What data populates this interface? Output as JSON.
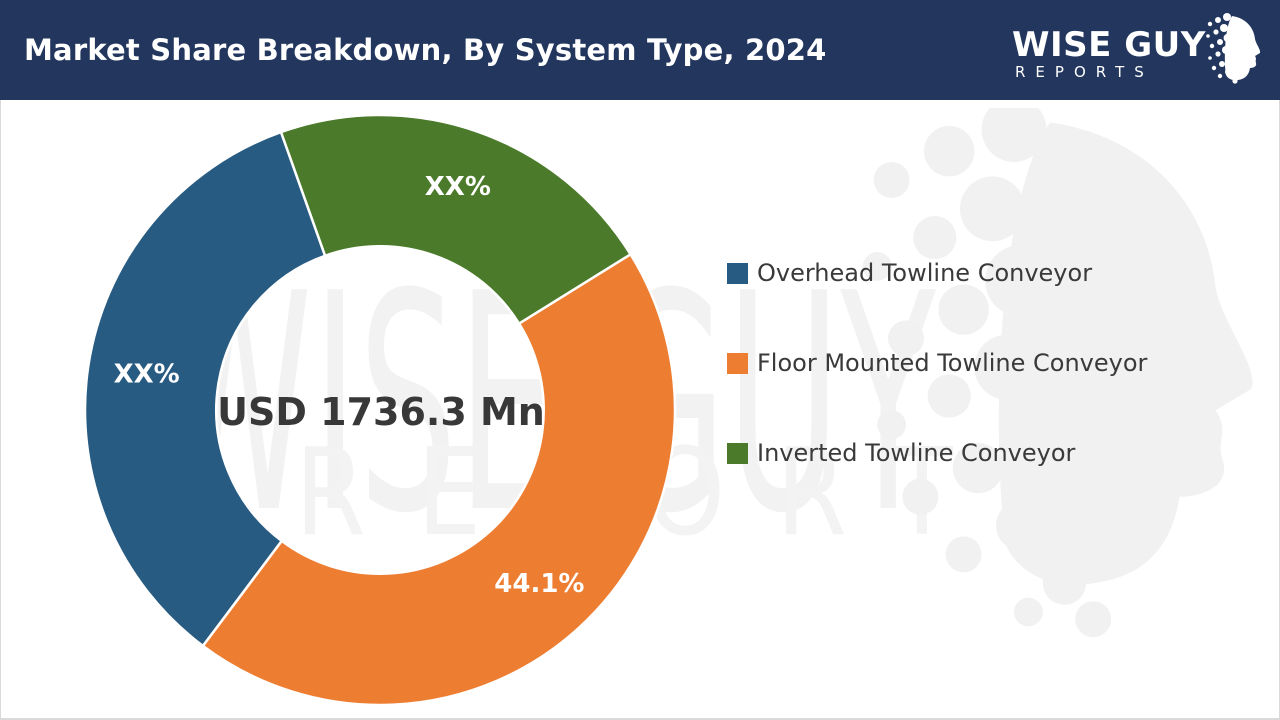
{
  "header": {
    "logo": {
      "brand_line1": "WISE GUY",
      "brand_line2": "REPORTS"
    }
  },
  "watermark": {
    "line1": "WISE GUY",
    "line2": "REPORTS"
  },
  "chart_data": {
    "type": "pie",
    "subtype": "donut",
    "title": "Market Share Breakdown, By System Type, 2024",
    "center_label": "USD 1736.3 Mn",
    "categories": [
      "Overhead Towline Conveyor",
      "Floor Mounted Towline Conveyor",
      "Inverted Towline Conveyor"
    ],
    "slices": [
      {
        "name": "Overhead Towline Conveyor",
        "display_label": "XX%",
        "value_pct": 34.3,
        "color": "#275b82"
      },
      {
        "name": "Floor Mounted Towline Conveyor",
        "display_label": "44.1%",
        "value_pct": 44.1,
        "color": "#ed7d31"
      },
      {
        "name": "Inverted Towline Conveyor",
        "display_label": "XX%",
        "value_pct": 21.6,
        "color": "#4a7a2a"
      }
    ],
    "layout": {
      "legend_position": "right",
      "donut_hole_ratio": 0.555,
      "start_angle_deg": 216.9,
      "clockwise_order": [
        0,
        2,
        1
      ]
    }
  }
}
